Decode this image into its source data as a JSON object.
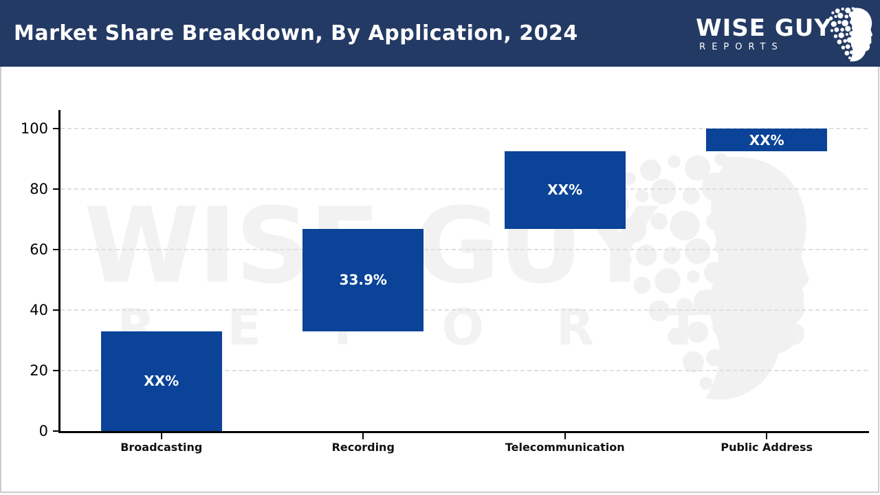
{
  "header": {
    "title": "Market Share Breakdown, By Application, 2024",
    "bg_color": "#233a64",
    "logo": {
      "line1": "WISE GUY",
      "line2": "REPORTS"
    }
  },
  "watermark": {
    "line1": "WISE GUY",
    "line2": "R E P O R T S"
  },
  "chart_data": {
    "type": "bar",
    "subtype": "floating-waterfall",
    "title": "Market Share Breakdown, By Application, 2024",
    "categories": [
      "Broadcasting",
      "Recording",
      "Telecommunication",
      "Public Address"
    ],
    "segments": [
      {
        "category": "Broadcasting",
        "start": 0,
        "end": 33.0,
        "label": "XX%"
      },
      {
        "category": "Recording",
        "start": 33.0,
        "end": 66.9,
        "label": "33.9%"
      },
      {
        "category": "Telecommunication",
        "start": 66.9,
        "end": 92.5,
        "label": "XX%"
      },
      {
        "category": "Public Address",
        "start": 92.5,
        "end": 100.0,
        "label": "XX%"
      }
    ],
    "ylim": [
      0,
      100
    ],
    "yticks": [
      0,
      20,
      40,
      60,
      80,
      100
    ],
    "grid": true,
    "legend": false,
    "xlabel": "",
    "ylabel": "",
    "bar_color": "#0a4397",
    "bar_label_color": "#ffffff",
    "axis_color": "#000000",
    "gridline_color": "#dedede"
  }
}
